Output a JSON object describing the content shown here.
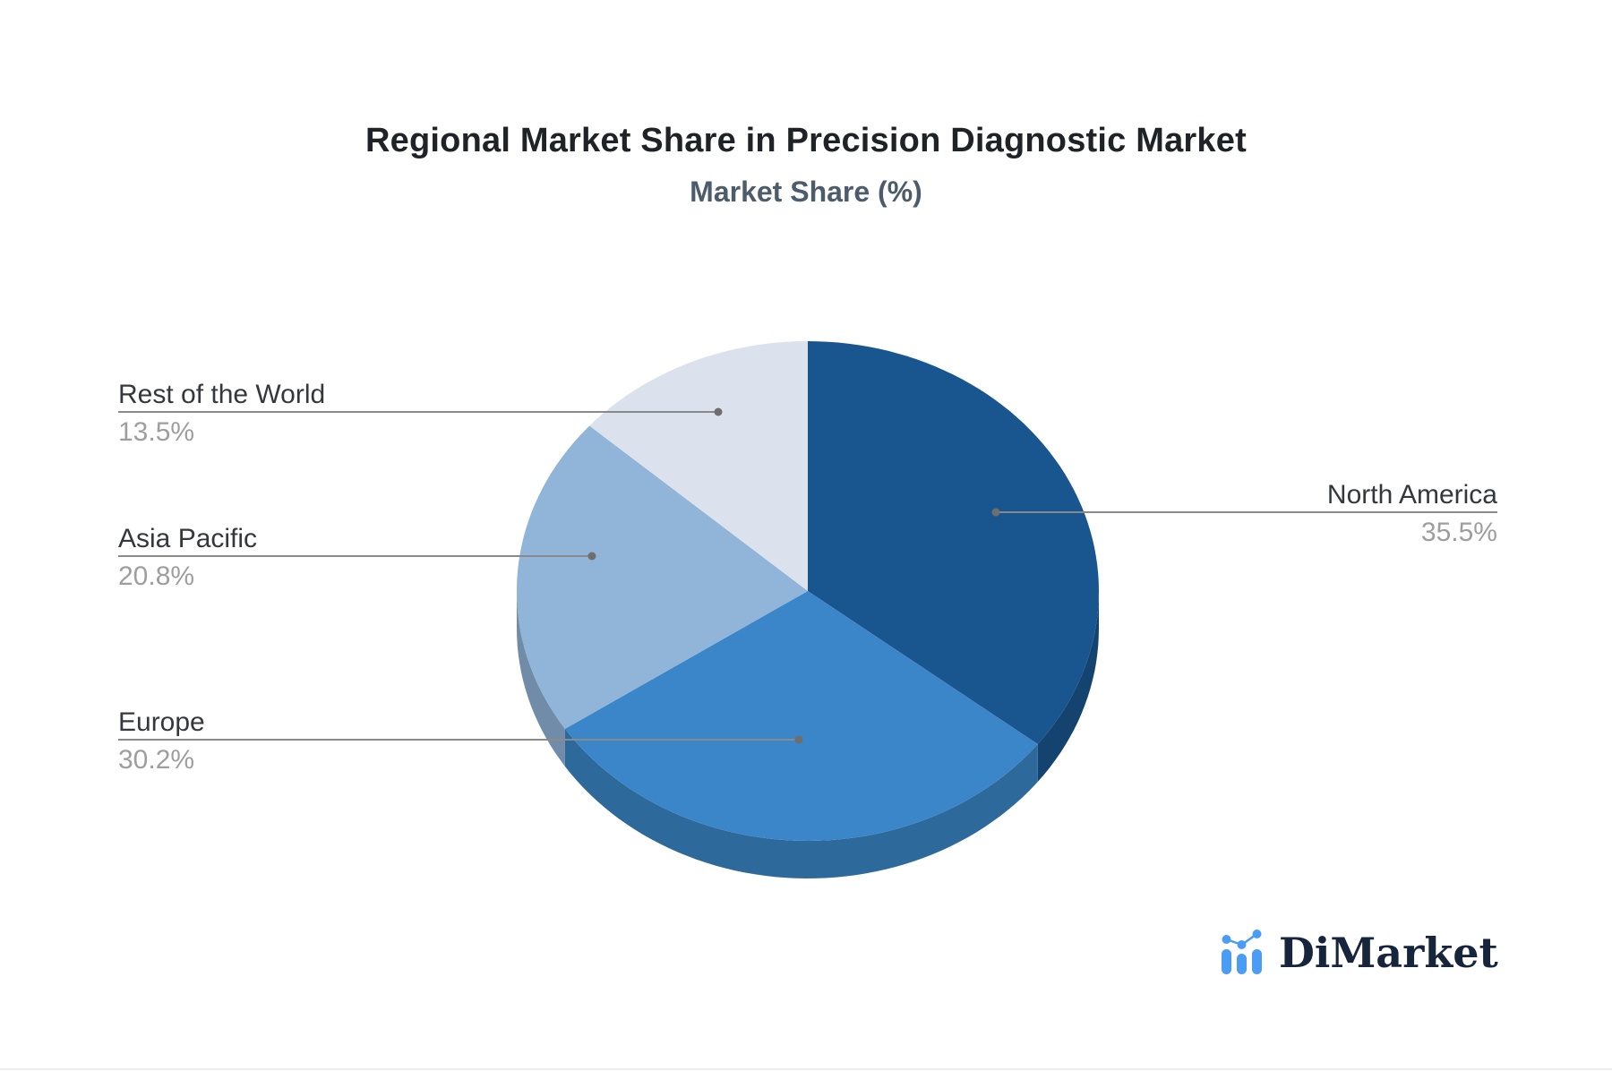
{
  "title": "Regional Market Share in Precision Diagnostic Market",
  "subtitle": "Market Share (%)",
  "logo": {
    "text": "DiMarket",
    "icon": "bar-chart-icon",
    "icon_color": "#4a9cf4",
    "text_color": "#16243c"
  },
  "chart_data": {
    "type": "pie",
    "style": "3d",
    "title": "Regional Market Share in Precision Diagnostic Market",
    "subtitle": "Market Share (%)",
    "unit": "%",
    "categories": [
      "North America",
      "Europe",
      "Asia Pacific",
      "Rest of the World"
    ],
    "values": [
      35.5,
      30.2,
      20.8,
      13.5
    ],
    "labels": [
      "35.5%",
      "30.2%",
      "20.8%",
      "13.5%"
    ],
    "colors": [
      "#19568f",
      "#3b86c8",
      "#91b4d9",
      "#dbe2ed"
    ],
    "start_angle_deg": 0,
    "direction": "clockwise",
    "legend_position": "none",
    "label_style": "callout-lines",
    "callout_line_color": "#8a8a8a",
    "callout_dot_color": "#6e6e6e"
  }
}
